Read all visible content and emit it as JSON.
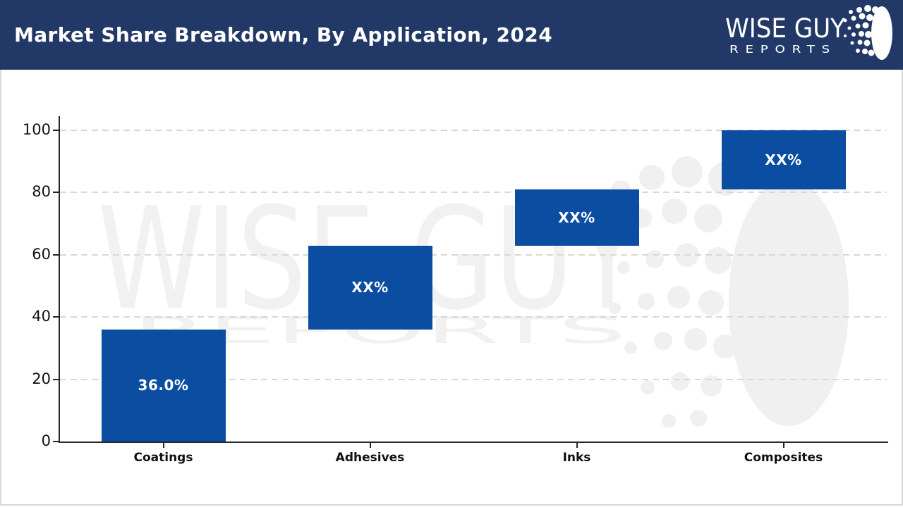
{
  "header": {
    "title": "Market Share Breakdown, By Application, 2024",
    "logo": {
      "line1": "WISE GUY",
      "line2": "REPORTS"
    }
  },
  "watermark": {
    "line1": "WISE GUY",
    "line2": "REPORTS"
  },
  "colors": {
    "header_bg": "#223967",
    "bar": "#0b4da1",
    "bar_label": "#ffffff",
    "axis": "#262626",
    "grid": "#d8d8d8",
    "watermark": "#f1f1f1"
  },
  "chart_data": {
    "type": "bar",
    "variant": "waterfall",
    "title": "Market Share Breakdown, By Application, 2024",
    "categories": [
      "Coatings",
      "Adhesives",
      "Inks",
      "Composites"
    ],
    "series": [
      {
        "name": "Market share (%)",
        "segments": [
          {
            "category": "Coatings",
            "start": 0,
            "end": 36,
            "value": 36.0,
            "label": "36.0%"
          },
          {
            "category": "Adhesives",
            "start": 36,
            "end": 63,
            "value": 27.0,
            "label": "XX%"
          },
          {
            "category": "Inks",
            "start": 63,
            "end": 81,
            "value": 18.0,
            "label": "XX%"
          },
          {
            "category": "Composites",
            "start": 81,
            "end": 100,
            "value": 19.0,
            "label": "XX%"
          }
        ]
      }
    ],
    "xlabel": "",
    "ylabel": "",
    "ylim": [
      0,
      100
    ],
    "yticks": [
      0,
      20,
      40,
      60,
      80,
      100
    ],
    "grid": "horizontal-dashed",
    "legend": "none",
    "bar_color": "#0b4da1"
  }
}
